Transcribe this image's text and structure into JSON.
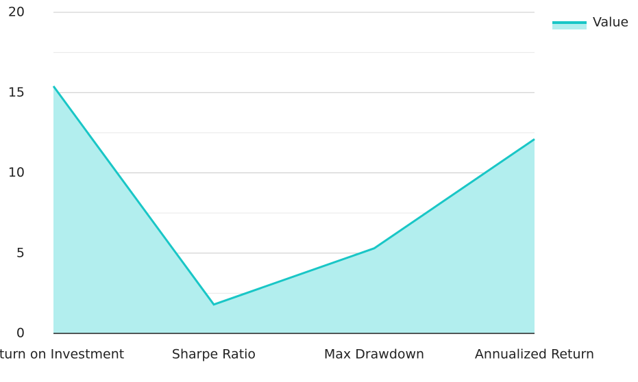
{
  "chart_data": {
    "type": "area",
    "categories": [
      "Return on Investment",
      "Sharpe Ratio",
      "Max Drawdown",
      "Annualized Return"
    ],
    "series": [
      {
        "name": "Value",
        "color": "#19c6c6",
        "fill": "#b2eeee",
        "values": [
          15.4,
          1.8,
          5.3,
          12.1
        ]
      }
    ],
    "ylim": [
      0,
      20
    ],
    "yticks": [
      0,
      5,
      10,
      15,
      20
    ],
    "yminorticks": [
      2.5,
      7.5,
      12.5,
      17.5
    ],
    "grid": true,
    "legend": "top-right"
  }
}
